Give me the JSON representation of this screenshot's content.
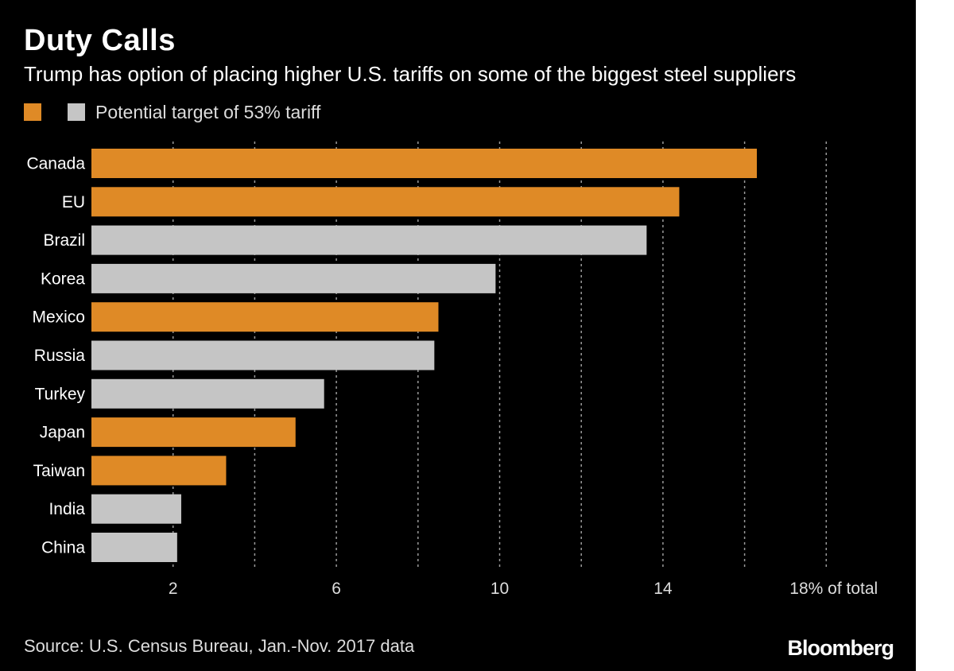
{
  "header": {
    "title": "Duty Calls",
    "subtitle": "Trump has option of placing higher U.S. tariffs on some of the biggest steel suppliers"
  },
  "legend": {
    "items": [
      {
        "label": "",
        "color": "#df8a26"
      },
      {
        "label": "Potential target of 53% tariff",
        "color": "#c5c5c5"
      }
    ]
  },
  "chart_data": {
    "type": "bar",
    "orientation": "horizontal",
    "title": "Duty Calls",
    "xlabel": "",
    "ylabel": "",
    "xlim": [
      0,
      20
    ],
    "grid": true,
    "categories": [
      "Canada",
      "EU",
      "Brazil",
      "Korea",
      "Mexico",
      "Russia",
      "Turkey",
      "Japan",
      "Taiwan",
      "India",
      "China"
    ],
    "values": [
      16.3,
      14.4,
      13.6,
      9.9,
      8.5,
      8.4,
      5.7,
      5.0,
      3.3,
      2.2,
      2.1
    ],
    "series_membership": [
      "",
      "",
      "Potential target of 53% tariff",
      "Potential target of 53% tariff",
      "",
      "Potential target of 53% tariff",
      "Potential target of 53% tariff",
      "",
      "",
      "Potential target of 53% tariff",
      "Potential target of 53% tariff"
    ],
    "colors": {
      "default": "#df8a26",
      "target": "#c5c5c5"
    },
    "ticks": [
      {
        "value": 2,
        "label": "2"
      },
      {
        "value": 6,
        "label": "6"
      },
      {
        "value": 10,
        "label": "10"
      },
      {
        "value": 14,
        "label": "14"
      },
      {
        "value": 18,
        "label": "18% of total"
      }
    ],
    "gridlines": [
      4,
      8,
      12,
      16,
      18
    ]
  },
  "footer": {
    "source": "Source: U.S. Census Bureau, Jan.-Nov. 2017 data",
    "brand": "Bloomberg"
  }
}
